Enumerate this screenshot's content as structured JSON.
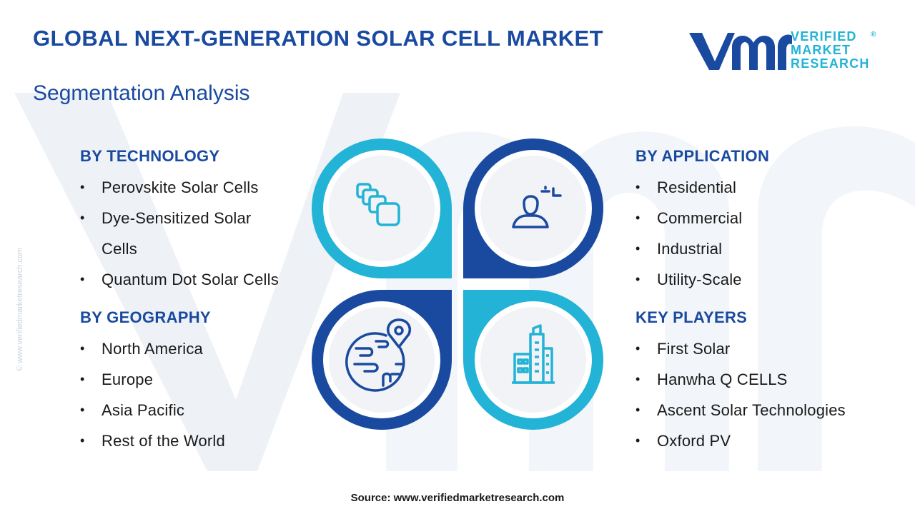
{
  "header": {
    "title": "GLOBAL NEXT-GENERATION SOLAR CELL MARKET",
    "subtitle": "Segmentation Analysis"
  },
  "logo": {
    "line1": "VERIFIED",
    "line2": "MARKET",
    "line3": "RESEARCH",
    "registered": "®"
  },
  "side_url": "© www.verifiedmarketresearch.com",
  "segments": {
    "technology": {
      "heading": "BY TECHNOLOGY",
      "items": [
        "Perovskite Solar Cells",
        "Dye-Sensitized Solar",
        "Cells",
        "Quantum Dot Solar Cells"
      ]
    },
    "geography": {
      "heading": "BY GEOGRAPHY",
      "items": [
        "North America",
        "Europe",
        "Asia Pacific",
        "Rest of the World"
      ]
    },
    "application": {
      "heading": "BY APPLICATION",
      "items": [
        "Residential",
        "Commercial",
        "Industrial",
        "Utility-Scale"
      ]
    },
    "players": {
      "heading": "KEY PLAYERS",
      "items": [
        "First Solar",
        "Hanwha Q CELLS",
        "Ascent Solar Technologies",
        "Oxford PV"
      ]
    }
  },
  "icons": {
    "top_left": "layered-squares-icon",
    "top_right": "user-profile-icon",
    "bottom_left": "globe-location-icon",
    "bottom_right": "city-buildings-icon"
  },
  "colors": {
    "dark_blue": "#1a4aa0",
    "cyan": "#22b3d6",
    "circle_fill": "#f1f3f6"
  },
  "source": "Source: www.verifiedmarketresearch.com"
}
